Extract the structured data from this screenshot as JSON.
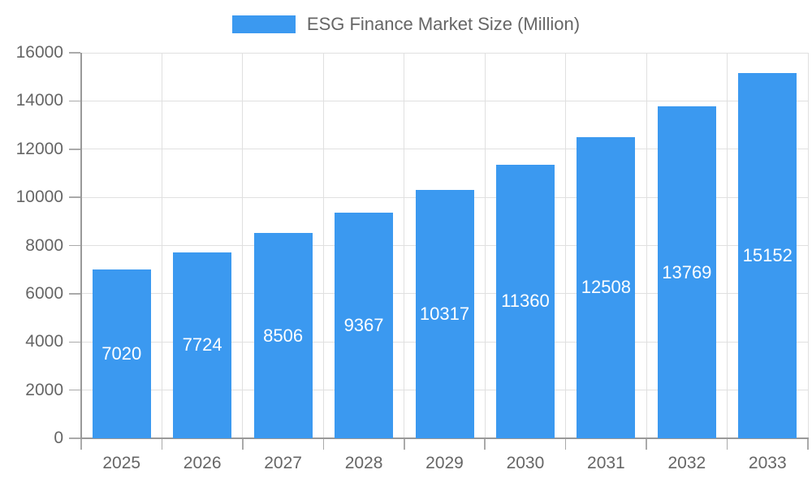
{
  "chart_data": {
    "type": "bar",
    "title": "ESG Finance Market Size (Million)",
    "series_name": "ESG Finance Market Size (Million)",
    "categories": [
      "2025",
      "2026",
      "2027",
      "2028",
      "2029",
      "2030",
      "2031",
      "2032",
      "2033"
    ],
    "values": [
      7020,
      7724,
      8506,
      9367,
      10317,
      11360,
      12508,
      13769,
      15152
    ],
    "xlabel": "",
    "ylabel": "",
    "ylim": [
      0,
      16000
    ],
    "yticks": [
      0,
      2000,
      4000,
      6000,
      8000,
      10000,
      12000,
      14000,
      16000
    ],
    "grid": true,
    "legend_position": "top-center",
    "bar_label_position": "inside-middle",
    "colors": {
      "bar": "#3B99F0",
      "bar_label": "#FFFFFF",
      "grid_line": "#E0E0E0",
      "axis_line": "#999999",
      "tick": "#AAAAAA",
      "axis_label": "#666666",
      "legend_text": "#666666",
      "background": "#FFFFFF"
    }
  }
}
